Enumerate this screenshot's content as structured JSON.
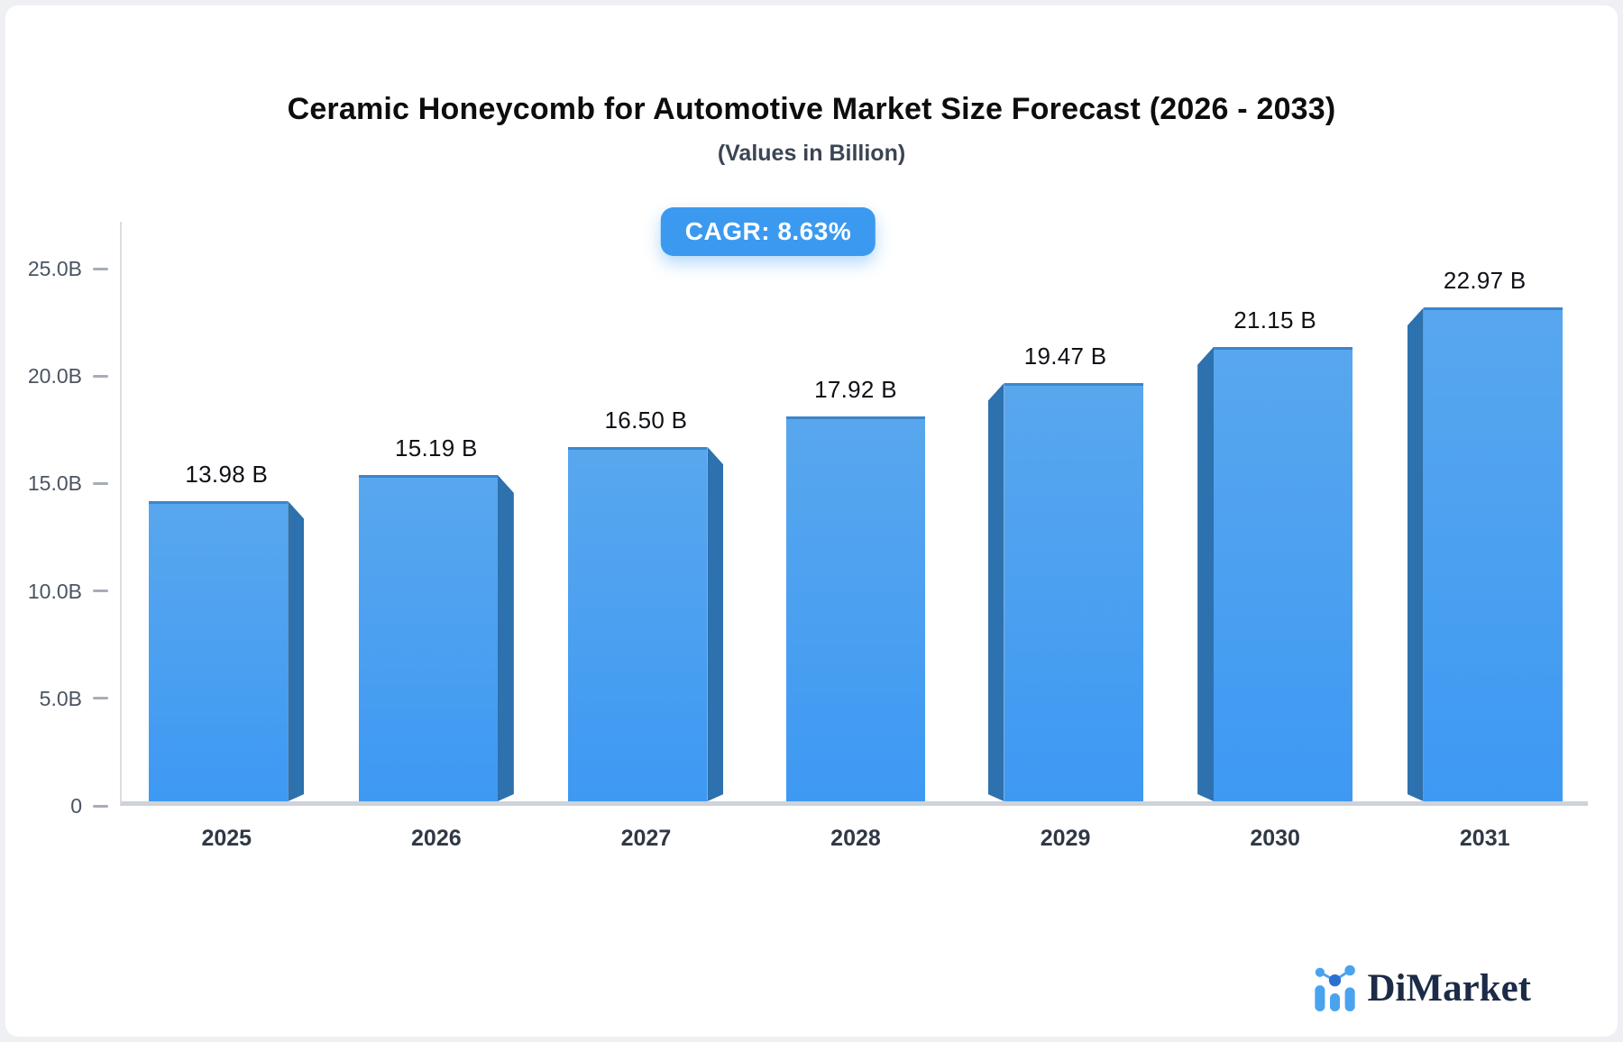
{
  "header": {
    "title": "Ceramic Honeycomb for Automotive Market Size Forecast (2026 - 2033)",
    "subtitle": "(Values in Billion)",
    "cagr_label": "CAGR: 8.63%"
  },
  "chart_data": {
    "type": "bar",
    "title": "Ceramic Honeycomb for Automotive Market Size Forecast (2026 - 2033)",
    "subtitle": "(Values in Billion)",
    "categories": [
      "2025",
      "2026",
      "2027",
      "2028",
      "2029",
      "2030",
      "2031"
    ],
    "values": [
      13.98,
      15.19,
      16.5,
      17.92,
      19.47,
      21.15,
      22.97
    ],
    "value_labels": [
      "13.98 B",
      "15.19 B",
      "16.50 B",
      "17.92 B",
      "19.47 B",
      "21.15 B",
      "22.97 B"
    ],
    "unit": "Billion",
    "cagr_percent": 8.63,
    "xlabel": "",
    "ylabel": "",
    "ylim": [
      0,
      25
    ],
    "y_axis": [
      {
        "label": "25.0B",
        "value": 25
      },
      {
        "label": "20.0B",
        "value": 20
      },
      {
        "label": "15.0B",
        "value": 15
      },
      {
        "label": "10.0B",
        "value": 10
      },
      {
        "label": "5.0B",
        "value": 5
      },
      {
        "label": "0",
        "value": 0
      }
    ],
    "grid": false,
    "legend": false,
    "depth_side": [
      "right",
      "right",
      "right",
      "none",
      "left",
      "left",
      "left"
    ]
  },
  "footer": {
    "brand": "DiMarket"
  },
  "colors": {
    "bar_face_top": "#58A7EE",
    "bar_face_bottom": "#3E99F3",
    "bar_top_edge": "#3D85CB",
    "bar_side": "#2D71AE",
    "badge_bg": "#3B9AF0",
    "axis_line": "#D9DDE3",
    "tick_dash": "#A7ADB7",
    "brand_blue": "#4AA3EF",
    "brand_dot_dark": "#2A70CF",
    "brand_navy": "#1C2B47"
  }
}
